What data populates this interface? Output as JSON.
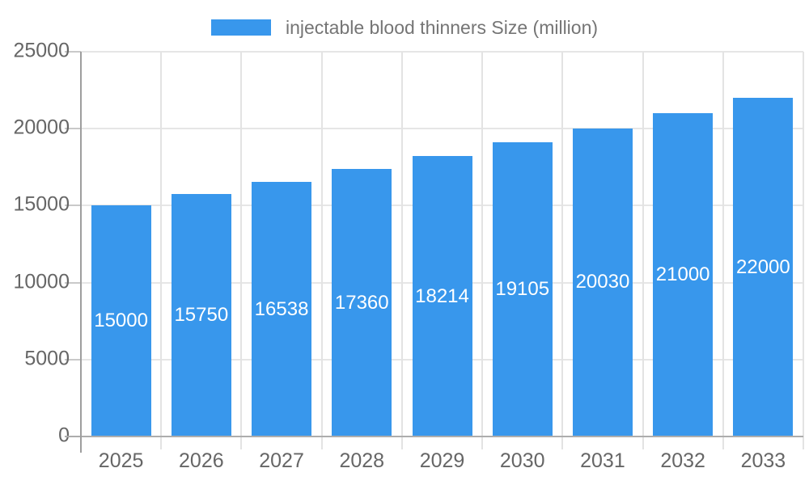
{
  "chart_data": {
    "type": "bar",
    "title": "",
    "legend_label": "injectable blood thinners Size (million)",
    "legend_position": "top",
    "categories": [
      "2025",
      "2026",
      "2027",
      "2028",
      "2029",
      "2030",
      "2031",
      "2032",
      "2033"
    ],
    "series": [
      {
        "name": "injectable blood thinners Size (million)",
        "values": [
          15000,
          15750,
          16538,
          17360,
          18214,
          19105,
          20030,
          21000,
          22000
        ]
      }
    ],
    "value_labels": [
      "15000",
      "15750",
      "16538",
      "17360",
      "18214",
      "19105",
      "20030",
      "21000",
      "22000"
    ],
    "xlabel": "",
    "ylabel": "",
    "ylim": [
      0,
      25000
    ],
    "yticks": [
      0,
      5000,
      10000,
      15000,
      20000,
      25000
    ],
    "ytick_labels": [
      "0",
      "5000",
      "10000",
      "15000",
      "20000",
      "25000"
    ],
    "grid": true,
    "value_label_placement": "inside-middle",
    "colors": {
      "bar": "#3897ec",
      "gridline": "#e6e6e6",
      "separator": "#e3e3e3",
      "y_tick": "#c9c9c9",
      "baseline": "#adadad",
      "y_axis_line": "#9e9e9e",
      "axis_text": "#666666",
      "legend_text": "#757575",
      "value_text": "#ffffff",
      "background": "#ffffff"
    }
  }
}
